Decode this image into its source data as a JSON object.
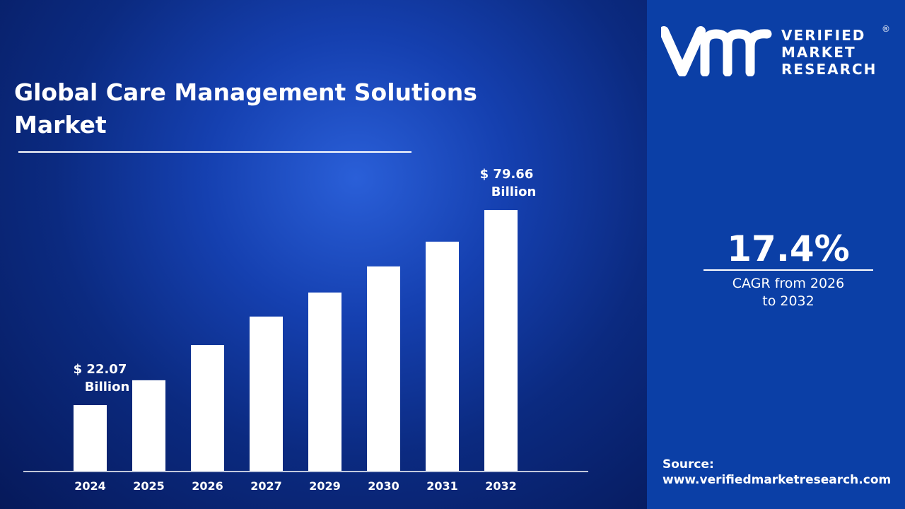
{
  "title": "Global Care Management Solutions Market",
  "brand": {
    "line1": "VERIFIED",
    "line2": "MARKET",
    "line3": "RESEARCH",
    "registered": "®"
  },
  "cagr": {
    "value": "17.4%",
    "label": "CAGR from 2026 to 2032"
  },
  "source": {
    "label": "Source:",
    "url": "www.verifiedmarketresearch.com"
  },
  "colors": {
    "right_panel": "#0b3fa6",
    "bars": "#ffffff",
    "background": "#1540b0"
  },
  "chart_data": {
    "type": "bar",
    "title": "Global Care Management Solutions Market",
    "categories": [
      "2024",
      "2025",
      "2026",
      "2027",
      "2029",
      "2030",
      "2031",
      "2032"
    ],
    "values": [
      22.07,
      29.4,
      39.8,
      48.2,
      55.3,
      63.0,
      70.3,
      79.66
    ],
    "unit": "USD Billion",
    "data_labels": [
      {
        "category": "2024",
        "line1": "$ 22.07",
        "line2": "Billion"
      },
      {
        "category": "2032",
        "line1": "$ 79.66",
        "line2": "Billion"
      }
    ],
    "grid": false,
    "legend": "none"
  }
}
